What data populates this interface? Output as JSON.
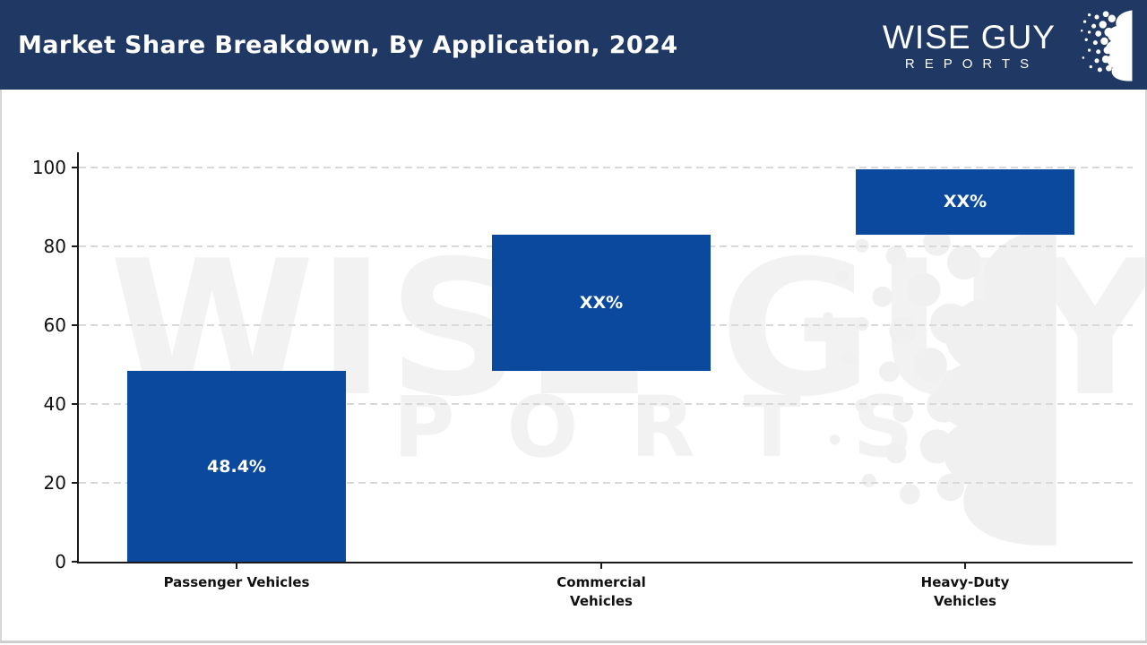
{
  "header": {
    "title": "Market Share Breakdown, By Application, 2024",
    "bg_color": "#1f3864",
    "logo": {
      "line1": "WISE GUY",
      "line2": "REPORTS"
    }
  },
  "watermark": {
    "line1": "WISE GUY",
    "line2": "REPORTS"
  },
  "chart_data": {
    "type": "bar",
    "subtype": "floating-segment-waterfall",
    "title": "Market Share Breakdown, By Application, 2024",
    "categories": [
      {
        "lines": [
          "Passenger Vehicles"
        ]
      },
      {
        "lines": [
          "Commercial",
          "Vehicles"
        ]
      },
      {
        "lines": [
          "Heavy-Duty",
          "Vehicles"
        ]
      }
    ],
    "segments": [
      {
        "category": "Passenger Vehicles",
        "start": 0,
        "end": 48.4,
        "label": "48.4%"
      },
      {
        "category": "Commercial Vehicles",
        "start": 48.4,
        "end": 83,
        "label": "XX%"
      },
      {
        "category": "Heavy-Duty Vehicles",
        "start": 83,
        "end": 99.5,
        "label": "XX%"
      }
    ],
    "ylim": [
      0,
      100
    ],
    "yticks": [
      0,
      20,
      40,
      60,
      80,
      100
    ],
    "grid": "horizontal-dashed",
    "legend": "none",
    "bar_color": "#0b499e",
    "label_color": "#ffffff",
    "axis_color": "#1a1a1a",
    "grid_color": "#d9d9d9"
  }
}
